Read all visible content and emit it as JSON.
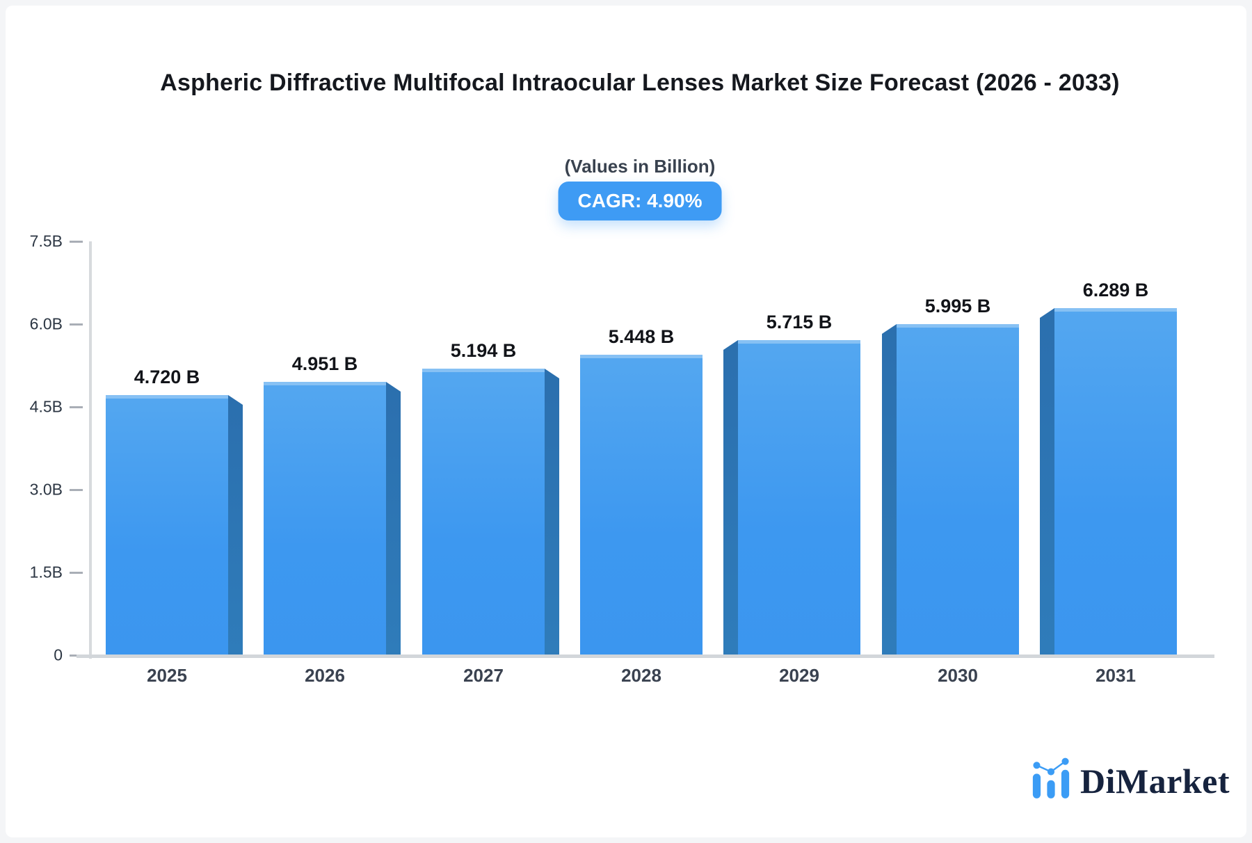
{
  "chart_data": {
    "type": "bar",
    "title": "Aspheric Diffractive Multifocal Intraocular Lenses Market Size Forecast (2026 - 2033)",
    "subtitle": "(Values in Billion)",
    "badge": "CAGR: 4.90%",
    "categories": [
      "2025",
      "2026",
      "2027",
      "2028",
      "2029",
      "2030",
      "2031"
    ],
    "values": [
      4.72,
      4.951,
      5.194,
      5.448,
      5.715,
      5.995,
      6.289
    ],
    "value_labels": [
      "4.720 B",
      "4.951 B",
      "5.194 B",
      "5.448 B",
      "5.715 B",
      "5.995 B",
      "6.289 B"
    ],
    "unit": "Billion",
    "ylim": [
      0,
      7.5
    ],
    "yticks": [
      {
        "label": "7.5B",
        "value": 7.5
      },
      {
        "label": "6.0B",
        "value": 6.0
      },
      {
        "label": "4.5B",
        "value": 4.5
      },
      {
        "label": "3.0B",
        "value": 3.0
      },
      {
        "label": "1.5B",
        "value": 1.5
      },
      {
        "label": "0",
        "value": 0
      }
    ],
    "grid": false,
    "legend": false,
    "colors": {
      "bar_face": "#3d98f0",
      "bar_face_light": "#54a7f0",
      "bar_side": "#2e77b6",
      "badge_bg": "#3e9bf4",
      "axis": "#d2d6da",
      "tick": "#a9aeb6",
      "title_text": "#15181e",
      "subtitle_text": "#39424f",
      "logo_navy": "#16233e",
      "logo_blue": "#3b9cf5"
    }
  },
  "logo": {
    "text": "DiMarket",
    "icon": "bar-chart-logo-icon"
  }
}
